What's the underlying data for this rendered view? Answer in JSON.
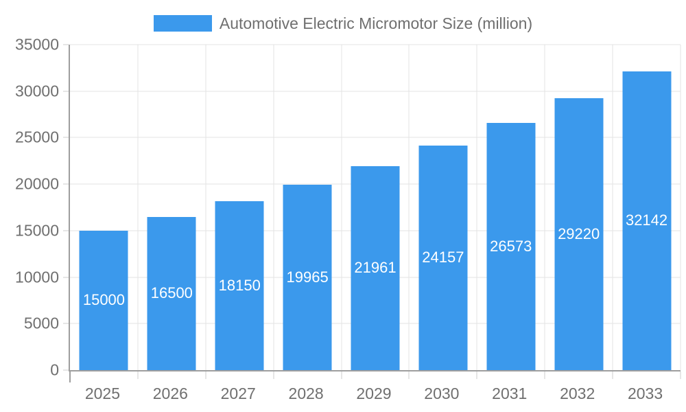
{
  "chart_data": {
    "type": "bar",
    "legend": "Automotive Electric Micromotor Size (million)",
    "legend_position": "top",
    "categories": [
      "2025",
      "2026",
      "2027",
      "2028",
      "2029",
      "2030",
      "2031",
      "2032",
      "2033"
    ],
    "values": [
      15000,
      16500,
      18150,
      19965,
      21961,
      24157,
      26573,
      29220,
      32142
    ],
    "xlabel": "",
    "ylabel": "",
    "ylim": [
      0,
      35000
    ],
    "ytick_step": 5000,
    "ytick_labels": [
      "0",
      "5000",
      "10000",
      "15000",
      "20000",
      "25000",
      "30000",
      "35000"
    ],
    "grid": true,
    "value_labels": "inside-center",
    "colors": {
      "bar": "#3B99EC",
      "grid": "#E3E3E3",
      "axis": "#9E9E9E",
      "tick": "#CCCCCC",
      "text": "#6F6F6F",
      "value_label": "#FFFFFF",
      "background": "#FFFFFF"
    }
  }
}
